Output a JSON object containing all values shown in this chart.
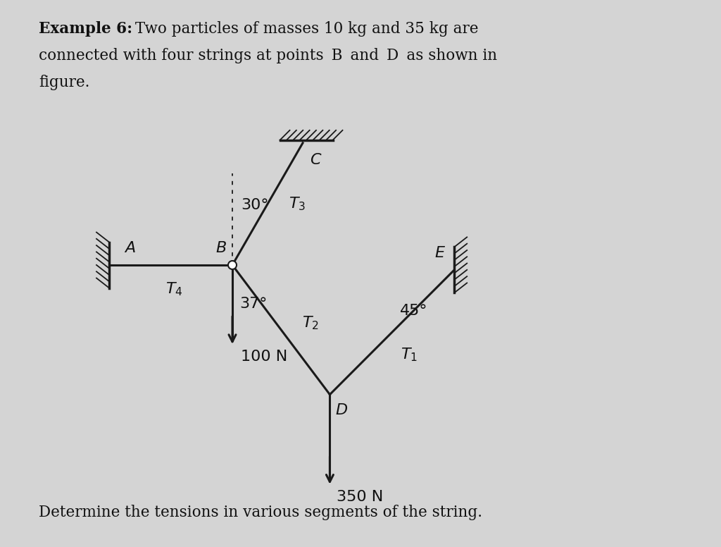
{
  "bg_color": "#d4d4d4",
  "line_color": "#1a1a1a",
  "text_color": "#111111",
  "footer": "Determine the tensions in various segments of the string.",
  "label_100N": "100 N",
  "label_350N": "350 N",
  "angle_30": "30°",
  "angle_37": "37°",
  "angle_45": "45°"
}
